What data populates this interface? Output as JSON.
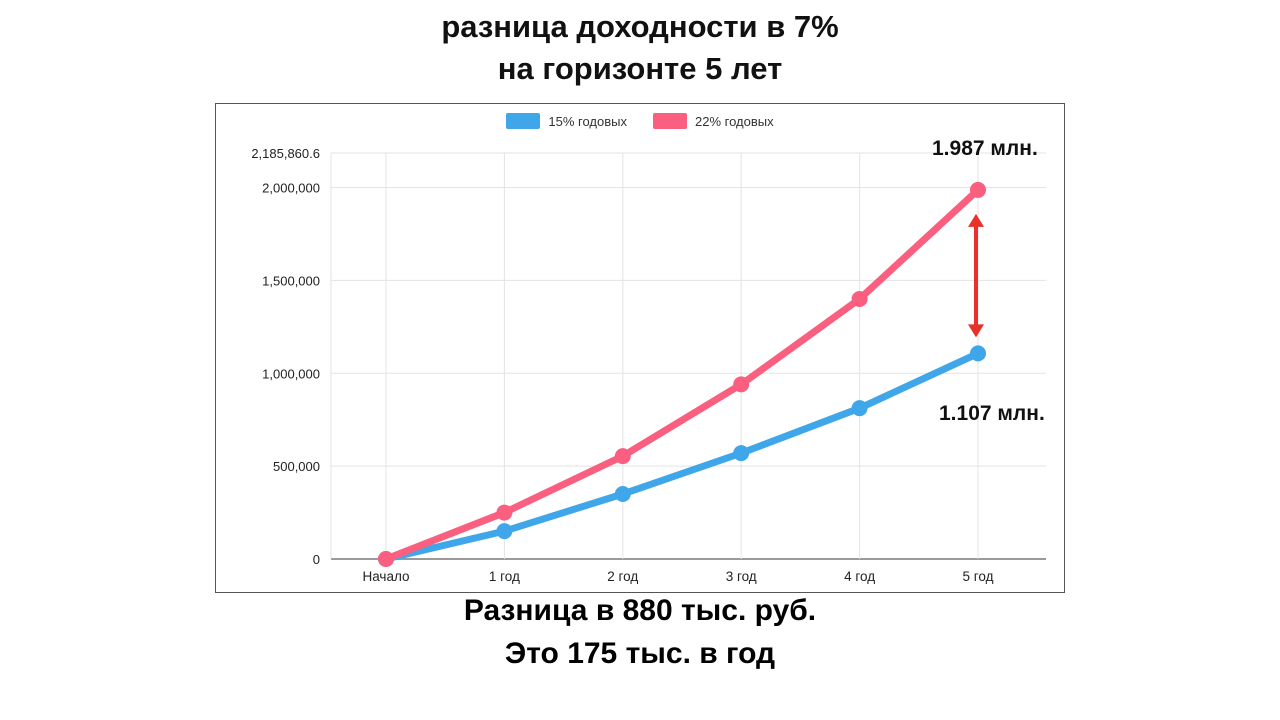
{
  "title": {
    "line1": "разница доходности в 7%",
    "line2": "на горизонте 5 лет"
  },
  "annotations": {
    "top_label": "1.987 млн.",
    "bottom_label": "1.107 млн.",
    "arrow_color": "#e8312a"
  },
  "footer": {
    "line1": "Разница в 880 тыс. руб.",
    "line2": "Это 175 тыс. в год"
  },
  "chart_data": {
    "type": "line",
    "categories": [
      "Начало",
      "1 год",
      "2 год",
      "3 год",
      "4 год",
      "5 год"
    ],
    "series": [
      {
        "name": "15% годовых",
        "color": "#3fa7e9",
        "values": [
          0,
          150000,
          350000,
          570000,
          812000,
          1107000
        ]
      },
      {
        "name": "22% годовых",
        "color": "#fa5f7f",
        "values": [
          0,
          250000,
          554000,
          940000,
          1400000,
          1987000
        ]
      }
    ],
    "y_ticks": [
      {
        "value": 0,
        "label": "0"
      },
      {
        "value": 500000,
        "label": "500,000"
      },
      {
        "value": 1000000,
        "label": "1,000,000"
      },
      {
        "value": 1500000,
        "label": "1,500,000"
      },
      {
        "value": 2000000,
        "label": "2,000,000"
      },
      {
        "value": 2185860.6,
        "label": "2,185,860.6"
      }
    ],
    "ylim": [
      0,
      2185860.6
    ],
    "grid": true,
    "legend_position": "top-center",
    "grid_color": "#e3e3e3",
    "axis_color": "#9a9a9a",
    "tick_label_color": "#222"
  }
}
